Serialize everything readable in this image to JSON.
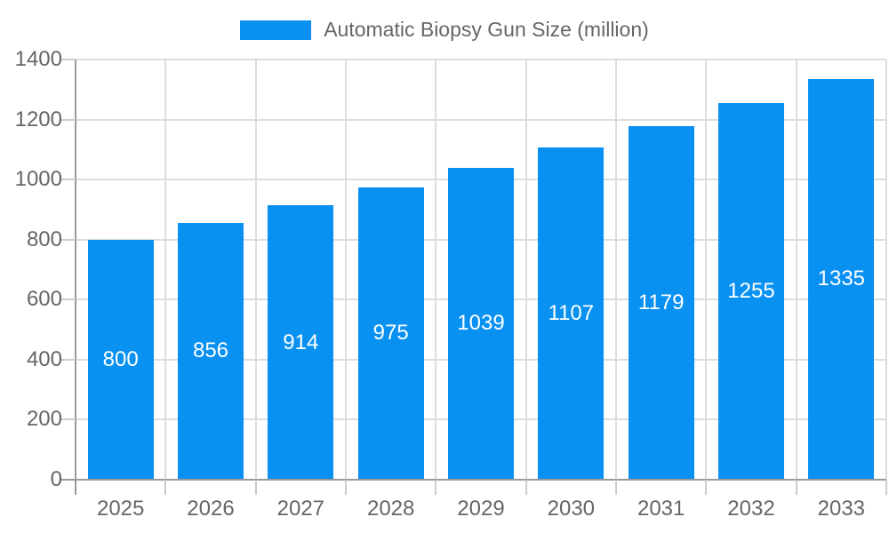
{
  "chart_data": {
    "type": "bar",
    "title": "Automatic Biopsy Gun Size (million)",
    "categories": [
      "2025",
      "2026",
      "2027",
      "2028",
      "2029",
      "2030",
      "2031",
      "2032",
      "2033"
    ],
    "values": [
      800,
      856,
      914,
      975,
      1039,
      1107,
      1179,
      1255,
      1335
    ],
    "xlabel": "",
    "ylabel": "",
    "ylim": [
      0,
      1400
    ],
    "y_ticks": [
      0,
      200,
      400,
      600,
      800,
      1000,
      1200,
      1400
    ],
    "grid": true,
    "bar_labels_inside": true,
    "legend_position": "top-center",
    "colors": {
      "bar": "#0991F2",
      "bar_label": "#ffffff",
      "grid": "#dddddd",
      "axis_line": "#999999",
      "tick_mark": "#cccccc",
      "tick_text": "#666666",
      "legend_text": "#666666",
      "background": "#ffffff"
    }
  },
  "legend": {
    "label": "Automatic Biopsy Gun Size (million)"
  }
}
